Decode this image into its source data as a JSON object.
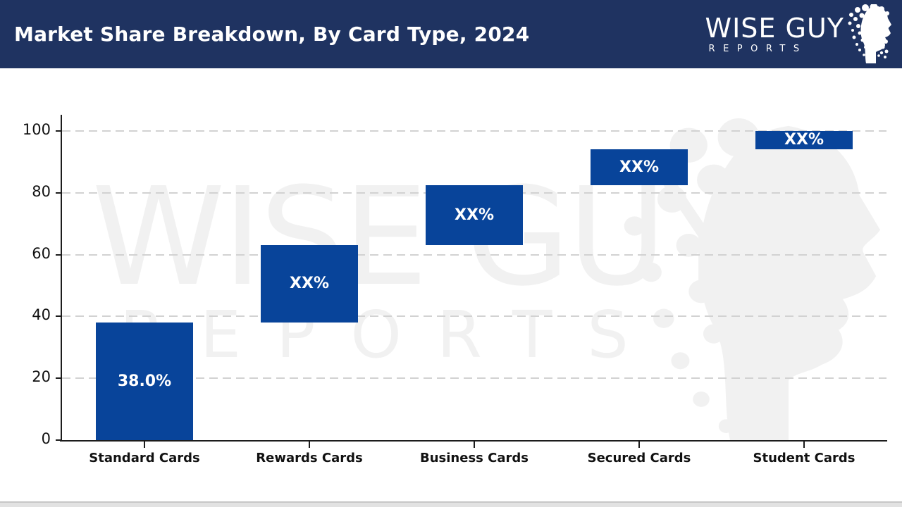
{
  "header": {
    "title": "Market Share Breakdown, By Card Type, 2024",
    "logo": {
      "line1": "WISE GUY",
      "line2": "REPORTS",
      "icon": "head-profile-dots-icon"
    }
  },
  "watermark": {
    "line1": "WISE GUY",
    "line2": "REPORTS",
    "icon": "head-profile-dots-icon"
  },
  "colors": {
    "header_bg": "#1f3361",
    "header_text": "#ffffff",
    "bar": "#08449a",
    "bar_label_text": "#ffffff",
    "axis": "#1c1c1c",
    "tick_label": "#111111",
    "gridline": "#d2d2d2",
    "watermark": "#f1f1f1",
    "footer_strip": "#e2e2e2"
  },
  "chart_data": {
    "type": "bar",
    "subtype": "waterfall",
    "title": "Market Share Breakdown, By Card Type, 2024",
    "xlabel": "",
    "ylabel": "",
    "units": "percent",
    "categories": [
      "Standard Cards",
      "Rewards Cards",
      "Business Cards",
      "Secured Cards",
      "Student Cards"
    ],
    "segments": [
      {
        "category": "Standard Cards",
        "start": 0,
        "end": 38,
        "label": "38.0%"
      },
      {
        "category": "Rewards Cards",
        "start": 38,
        "end": 63,
        "label": "XX%"
      },
      {
        "category": "Business Cards",
        "start": 63,
        "end": 82.5,
        "label": "XX%"
      },
      {
        "category": "Secured Cards",
        "start": 82.5,
        "end": 94,
        "label": "XX%"
      },
      {
        "category": "Student Cards",
        "start": 94,
        "end": 100,
        "label": "XX%"
      }
    ],
    "yticks": [
      0,
      20,
      40,
      60,
      80,
      100
    ],
    "ylim": [
      0,
      105
    ],
    "grid": "horizontal dashed",
    "legend": "none"
  }
}
